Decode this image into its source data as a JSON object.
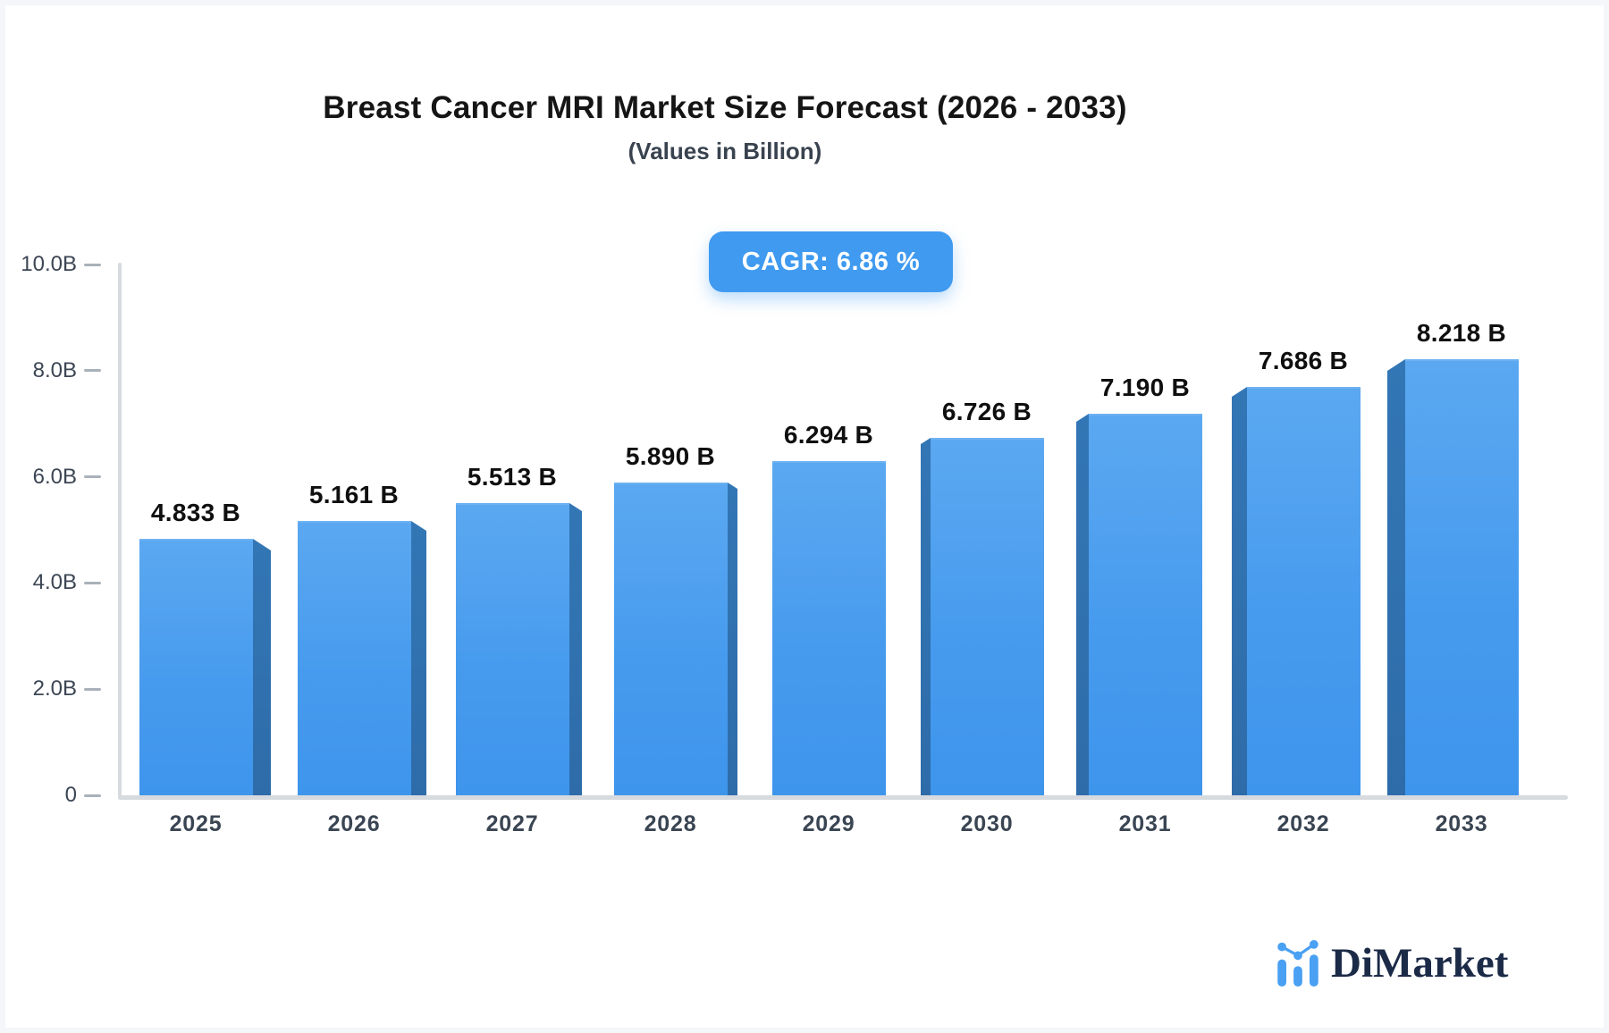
{
  "chart_data": {
    "type": "bar",
    "title": "Breast Cancer MRI Market Size Forecast (2026 - 2033)",
    "subtitle": "(Values in Billion)",
    "cagr_badge": "CAGR: 6.86 %",
    "categories": [
      "2025",
      "2026",
      "2027",
      "2028",
      "2029",
      "2030",
      "2031",
      "2032",
      "2033"
    ],
    "values": [
      4.833,
      5.161,
      5.513,
      5.89,
      6.294,
      6.726,
      7.19,
      7.686,
      8.218
    ],
    "value_labels": [
      "4.833 B",
      "5.161 B",
      "5.513 B",
      "5.890 B",
      "6.294 B",
      "6.726 B",
      "7.190 B",
      "7.686 B",
      "8.218 B"
    ],
    "yticks": [
      {
        "label": "10.0B",
        "value": 10
      },
      {
        "label": "8.0B",
        "value": 8
      },
      {
        "label": "6.0B",
        "value": 6
      },
      {
        "label": "4.0B",
        "value": 4
      },
      {
        "label": "2.0B",
        "value": 2
      },
      {
        "label": "0",
        "value": 0
      }
    ],
    "ylim": [
      0,
      10
    ],
    "grid": "off",
    "legend": "none",
    "bar_color": "#479BEE",
    "bar_side_color": "#2E6CA9",
    "badge_color": "#3F9AF0"
  },
  "brand": {
    "name": "DiMarket",
    "icon": "bar-chart-logo-icon",
    "icon_color": "#4AA0F2",
    "text_color": "#1B2A47"
  }
}
